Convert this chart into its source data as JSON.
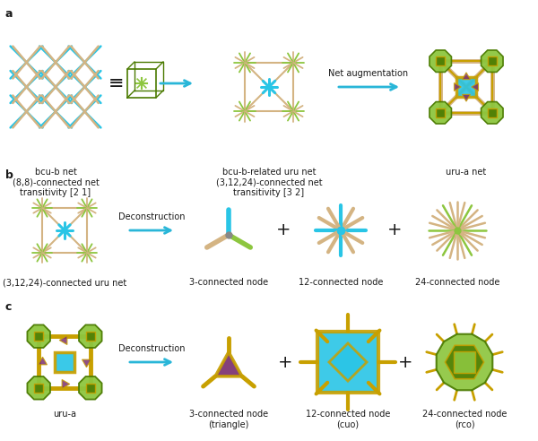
{
  "title_a": "a",
  "title_b": "b",
  "title_c": "c",
  "label_bcu_b": "bcu-b net\n(8,8)-connected net\ntransitivity [2 1]",
  "label_bcu_b_related": "bcu-b-related uru net\n(3,12,24)-connected net\ntransitivity [3 2]",
  "label_uru_a_net": "uru-a net",
  "label_net_aug": "Net augmentation",
  "label_uru_net": "(3,12,24)-connected uru net",
  "label_deconstruction": "Deconstruction",
  "label_3conn": "3-connected node",
  "label_12conn": "12-connected node",
  "label_24conn": "24-connected node",
  "label_uru_a": "uru-a",
  "label_3conn_tri": "3-connected node\n(triangle)",
  "label_12conn_cuo": "12-connected node\n(cuo)",
  "label_24conn_rco": "24-connected node\n(rco)",
  "color_cyan": "#29C5E6",
  "color_green": "#8DC63F",
  "color_dark_green": "#4A7A00",
  "color_tan": "#D4B483",
  "color_yellow": "#E8C000",
  "color_purple": "#7B3070",
  "color_dark_yellow": "#C8A000",
  "color_arrow": "#29B6D8",
  "bg_color": "#FFFFFF",
  "text_color": "#1A1A1A",
  "font_size_label": 7.0,
  "font_size_panel": 9
}
